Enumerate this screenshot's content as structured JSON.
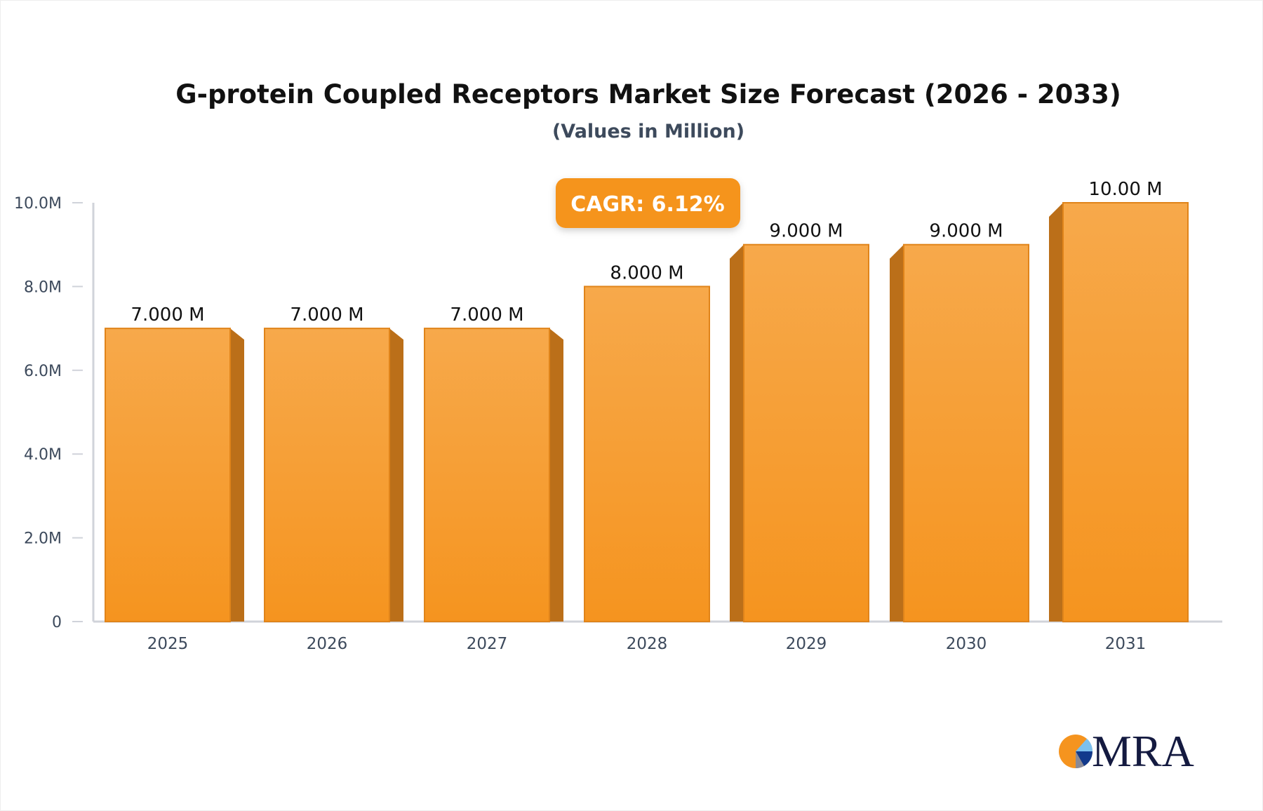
{
  "chart_data": {
    "type": "bar",
    "title": "G-protein Coupled Receptors Market Size Forecast (2026 - 2033)",
    "subtitle": "(Values in Million)",
    "categories": [
      "2025",
      "2026",
      "2027",
      "2028",
      "2029",
      "2030",
      "2031"
    ],
    "values": [
      7.0,
      7.0,
      7.0,
      8.0,
      9.0,
      9.0,
      10.0
    ],
    "data_labels": [
      "7.000 M",
      "7.000 M",
      "7.000 M",
      "8.000 M",
      "9.000 M",
      "9.000 M",
      "10.00 M"
    ],
    "yticks": [
      0,
      2,
      4,
      6,
      8,
      10
    ],
    "ytick_labels": [
      "0",
      "2.0M",
      "4.0M",
      "6.0M",
      "8.0M",
      "10.0M"
    ],
    "ylim": [
      0,
      10
    ],
    "xlabel": "",
    "ylabel": "",
    "grid": false,
    "annotation": "CAGR: 6.12%",
    "colors": {
      "bar_top": "#f7a94b",
      "bar_bottom": "#f5941f",
      "bar_side": "#bb6f19",
      "bar_edge": "#e0841a",
      "annotation_bg": "#f5941f",
      "axis": "#d0d3da"
    }
  },
  "logo": {
    "text": "MRA"
  }
}
